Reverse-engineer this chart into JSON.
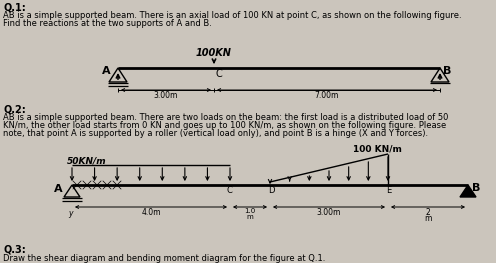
{
  "bg_color": "#cbc5bc",
  "title_q1": "Q.1:",
  "text_q1_line1": "AB is a simple supported beam. There is an axial load of 100 KN at point C, as shown on the following figure.",
  "text_q1_line2": "Find the reactions at the two supports of A and B.",
  "beam_q1": {
    "load_label": "100KN",
    "point_c_label": "C",
    "point_a_label": "A",
    "point_b_label": "B",
    "dim1": "3.00m",
    "dim2": "7.00m"
  },
  "title_q2": "Q.2:",
  "text_q2_line1": "AB is a simple supported beam. There are two loads on the beam: the first load is a distributed load of 50",
  "text_q2_line2": "KN/m, the other load starts from 0 KN and goes up to 100 KN/m, as shown on the following figure. Please",
  "text_q2_line3": "note, that point A is supported by a roller (vertical load only), and point B is a hinge (X and Y forces).",
  "beam_q2": {
    "load1_label": "50KN/m",
    "load2_label": "100 KN/m",
    "point_a_label": "A",
    "point_c_label": "C",
    "point_d_label": "D",
    "point_e_label": "E",
    "point_b_label": "B",
    "dim1": "4.0m",
    "dim2": "1.0",
    "dim2_unit": "m",
    "dim3": "3.00m",
    "dim4": "2",
    "dim4_unit": "m"
  },
  "title_q3": "Q.3:",
  "text_q3": "Draw the shear diagram and bending moment diagram for the figure at Q.1."
}
